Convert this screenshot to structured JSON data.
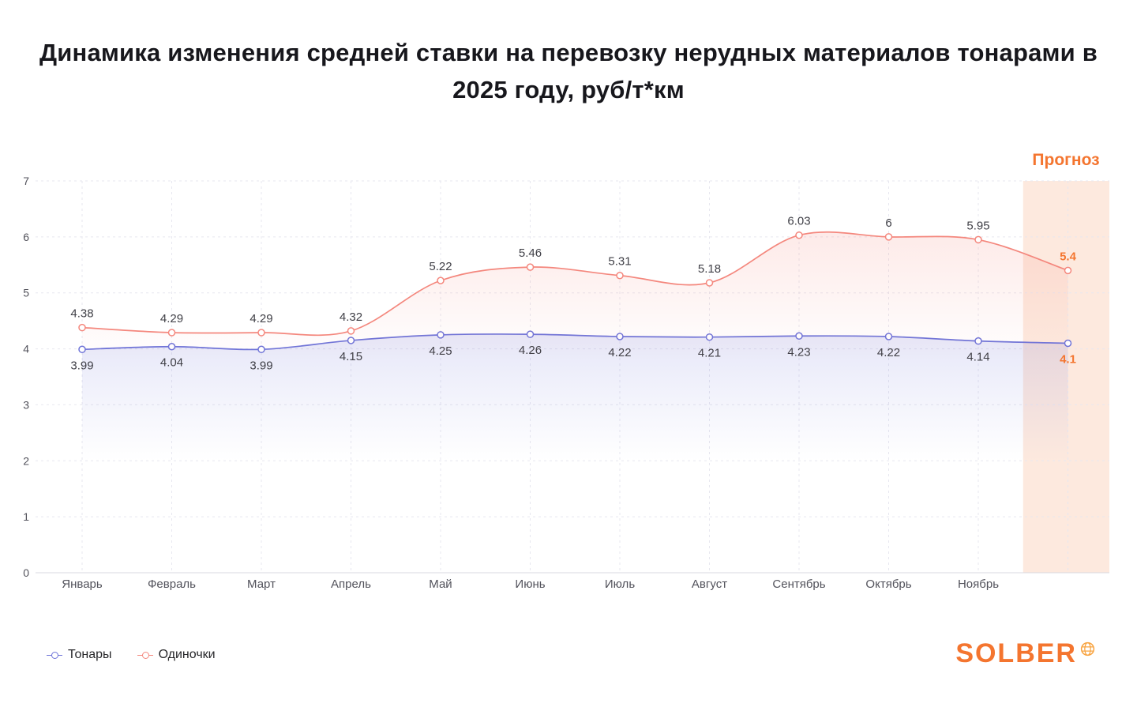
{
  "title": "Динамика изменения средней ставки на перевозку нерудных материалов тонарами в 2025 году, руб/т*км",
  "forecast_label": "Прогноз",
  "colors": {
    "accent": "#f4752f",
    "forecast_band": "rgba(244,117,47,0.16)",
    "grid": "#e7e7ef",
    "grid_zero": "#d9d9e0",
    "axis_text": "#52525b",
    "label_text": "#3f3f46",
    "title_text": "#17171c"
  },
  "legend": [
    {
      "label": "Тонары",
      "color": "#6e74d9"
    },
    {
      "label": "Одиночки",
      "color": "#f4877d"
    }
  ],
  "logo": {
    "text": "SOLBER"
  },
  "chart_data": {
    "type": "line",
    "categories": [
      "Январь",
      "Февраль",
      "Март",
      "Апрель",
      "Май",
      "Июнь",
      "Июль",
      "Август",
      "Сентябрь",
      "Октябрь",
      "Ноябрь"
    ],
    "series": [
      {
        "name": "Тонары",
        "color": "#6e74d9",
        "label_position": "below",
        "values": [
          3.99,
          4.04,
          3.99,
          4.15,
          4.25,
          4.26,
          4.22,
          4.21,
          4.23,
          4.22,
          4.14,
          4.1
        ]
      },
      {
        "name": "Одиночки",
        "color": "#f4877d",
        "label_position": "above",
        "values": [
          4.38,
          4.29,
          4.29,
          4.32,
          5.22,
          5.46,
          5.31,
          5.18,
          6.03,
          6,
          5.95,
          5.4
        ]
      }
    ],
    "title": "Динамика изменения средней ставки на перевозку нерудных материалов тонарами в 2025 году, руб/т*км",
    "xlabel": "",
    "ylabel": "",
    "ylim": [
      0,
      7
    ],
    "yticks": [
      0,
      1,
      2,
      3,
      4,
      5,
      6,
      7
    ],
    "forecast_index": 11,
    "grid": true,
    "legend_position": "bottom-left"
  }
}
